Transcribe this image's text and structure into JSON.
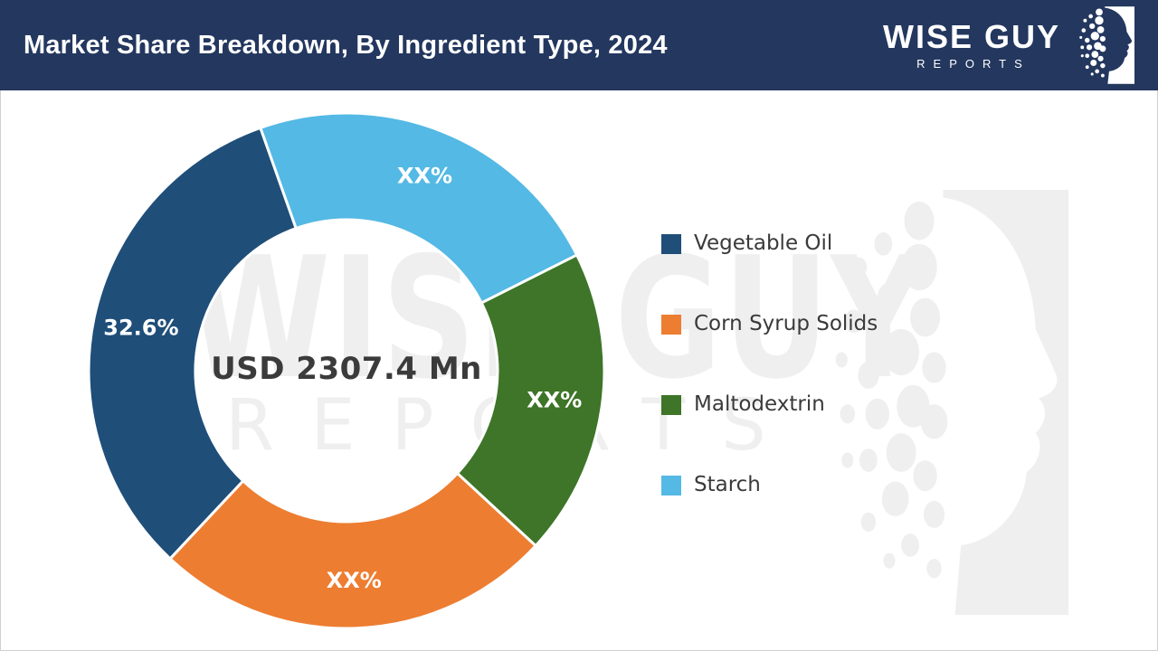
{
  "header": {
    "title": "Market Share Breakdown, By Ingredient Type, 2024",
    "bg_color": "#23375F",
    "logo": {
      "line1": "WISE GUY",
      "line2": "REPORTS"
    }
  },
  "watermark": {
    "line1": "WISE GUY",
    "line2": "REPORTS"
  },
  "chart_data": {
    "type": "pie",
    "subtype": "donut",
    "title": "Market Share Breakdown, By Ingredient Type, 2024",
    "center_label": "USD 2307.4 Mn",
    "start_angle_deg": 109.5,
    "direction": "counterclockwise",
    "legend_position": "right",
    "slices": [
      {
        "name": "Vegetable Oil",
        "label": "32.6%",
        "value_pct": 32.6,
        "color": "#1F4E79"
      },
      {
        "name": "Corn Syrup Solids",
        "label": "XX%",
        "value_pct": 25.1,
        "color": "#ED7D31"
      },
      {
        "name": "Maltodextrin",
        "label": "XX%",
        "value_pct": 19.3,
        "color": "#3E7528"
      },
      {
        "name": "Starch",
        "label": "XX%",
        "value_pct": 23.0,
        "color": "#54B9E4"
      }
    ]
  }
}
